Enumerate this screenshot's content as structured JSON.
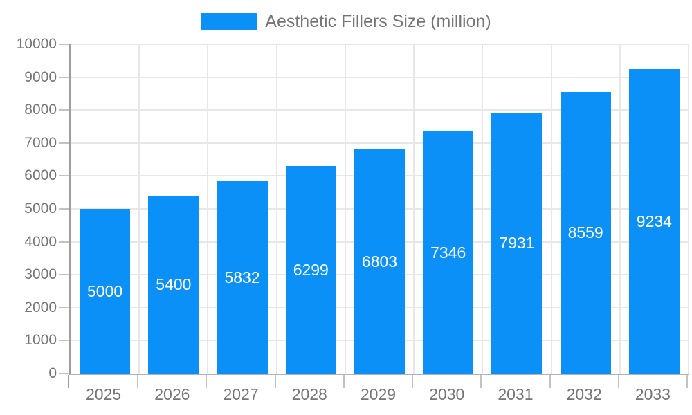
{
  "legend": {
    "label": "Aesthetic Fillers Size (million)"
  },
  "chart_data": {
    "type": "bar",
    "title": "Aesthetic Fillers Size (million)",
    "series_name": "Aesthetic Fillers Size (million)",
    "categories": [
      "2025",
      "2026",
      "2027",
      "2028",
      "2029",
      "2030",
      "2031",
      "2032",
      "2033"
    ],
    "values": [
      5000,
      5400,
      5832,
      6299,
      6803,
      7346,
      7931,
      8559,
      9234
    ],
    "data_labels": [
      "5000",
      "5400",
      "5832",
      "6299",
      "6803",
      "7346",
      "7931",
      "8559",
      "9234"
    ],
    "xlabel": "",
    "ylabel": "",
    "ylim": [
      0,
      10000
    ],
    "ytick_step": 1000,
    "y_tick_labels": [
      "0",
      "1000",
      "2000",
      "3000",
      "4000",
      "5000",
      "6000",
      "7000",
      "8000",
      "9000",
      "10000"
    ],
    "grid": true,
    "legend_position": "top-center",
    "data_label_position": "inside-center",
    "colors": {
      "bar": "#0a90f6",
      "bar_label_text": "#ffffff",
      "axis_text": "#757575",
      "legend_text": "#757575",
      "grid_line": "#e7e7e7",
      "y_axis_line": "#9e9e9e",
      "x_axis_line": "#b3b3b3",
      "tick_mark": "#c2c2c2"
    }
  }
}
